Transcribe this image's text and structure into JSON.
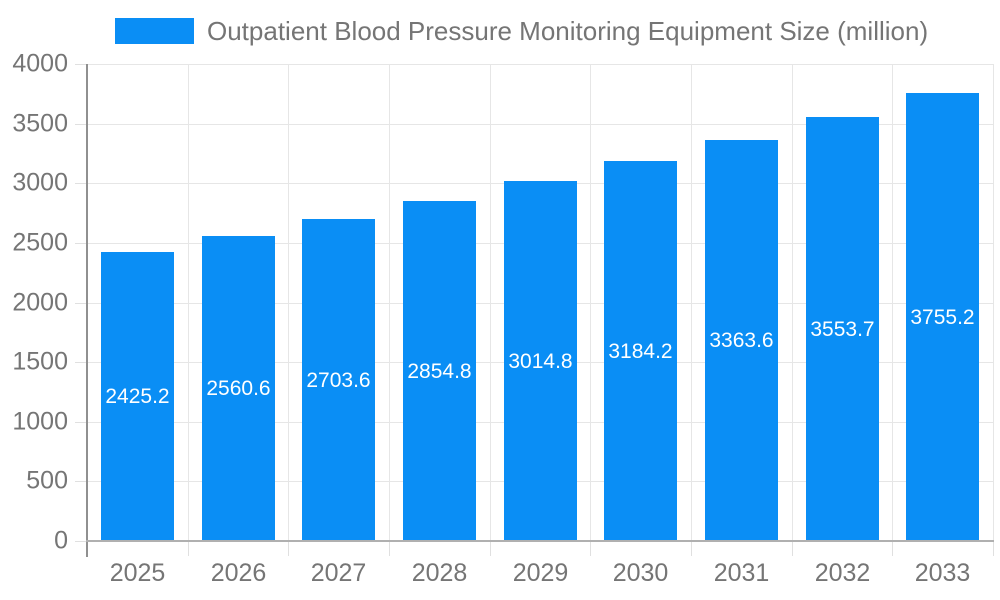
{
  "chart_data": {
    "type": "bar",
    "title": "Outpatient Blood Pressure Monitoring Equipment Size (million)",
    "legend": [
      "Outpatient Blood Pressure Monitoring Equipment Size (million)"
    ],
    "legend_position": "top",
    "categories": [
      "2025",
      "2026",
      "2027",
      "2028",
      "2029",
      "2030",
      "2031",
      "2032",
      "2033"
    ],
    "values": [
      2425.2,
      2560.6,
      2703.6,
      2854.8,
      3014.8,
      3184.2,
      3363.6,
      3553.7,
      3755.2
    ],
    "value_labels": [
      "2425.2",
      "2560.6",
      "2703.6",
      "2854.8",
      "3014.8",
      "3184.2",
      "3363.6",
      "3553.7",
      "3755.2"
    ],
    "xlabel": "",
    "ylabel": "",
    "ylim": [
      0,
      4000
    ],
    "y_ticks": [
      0,
      500,
      1000,
      1500,
      2000,
      2500,
      3000,
      3500,
      4000
    ],
    "y_tick_labels": [
      "0",
      "500",
      "1000",
      "1500",
      "2000",
      "2500",
      "3000",
      "3500",
      "4000"
    ],
    "grid": true,
    "colors": {
      "bar": "#0a8ef5",
      "bar_label_text": "#ffffff",
      "axis_text": "#757575",
      "gridline": "#e6e6e6",
      "tick": "#e0e0e0",
      "y_axis_line": "#909090",
      "x_axis_line": "#b0b0b0",
      "background": "#ffffff"
    }
  }
}
